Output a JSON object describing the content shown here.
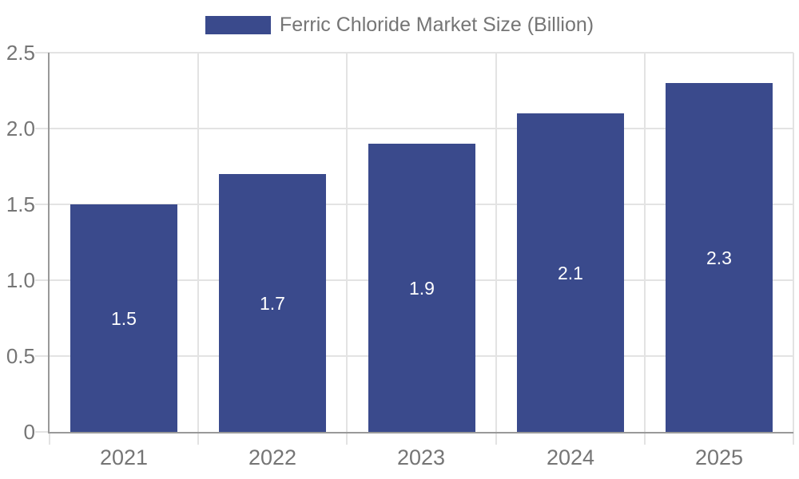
{
  "chart_data": {
    "type": "bar",
    "title": "Ferric Chloride Market Size (Billion)",
    "legend": {
      "label": "Ferric Chloride Market Size (Billion)",
      "position": "top-center"
    },
    "categories": [
      "2021",
      "2022",
      "2023",
      "2024",
      "2025"
    ],
    "values": [
      1.5,
      1.7,
      1.9,
      2.1,
      2.3
    ],
    "value_labels": [
      "1.5",
      "1.7",
      "1.9",
      "2.1",
      "2.3"
    ],
    "xlabel": "",
    "ylabel": "",
    "ylim": [
      0,
      2.5
    ],
    "yticks": [
      0,
      0.5,
      1.0,
      1.5,
      2.0,
      2.5
    ],
    "ytick_labels": [
      "0",
      "0.5",
      "1.0",
      "1.5",
      "2.0",
      "2.5"
    ],
    "grid": true,
    "colors": {
      "bar": "#3A4A8C",
      "grid": "#e3e3e3",
      "axis": "#999999",
      "tick_label": "#757575",
      "value_label": "#ffffff",
      "background": "#ffffff"
    }
  }
}
